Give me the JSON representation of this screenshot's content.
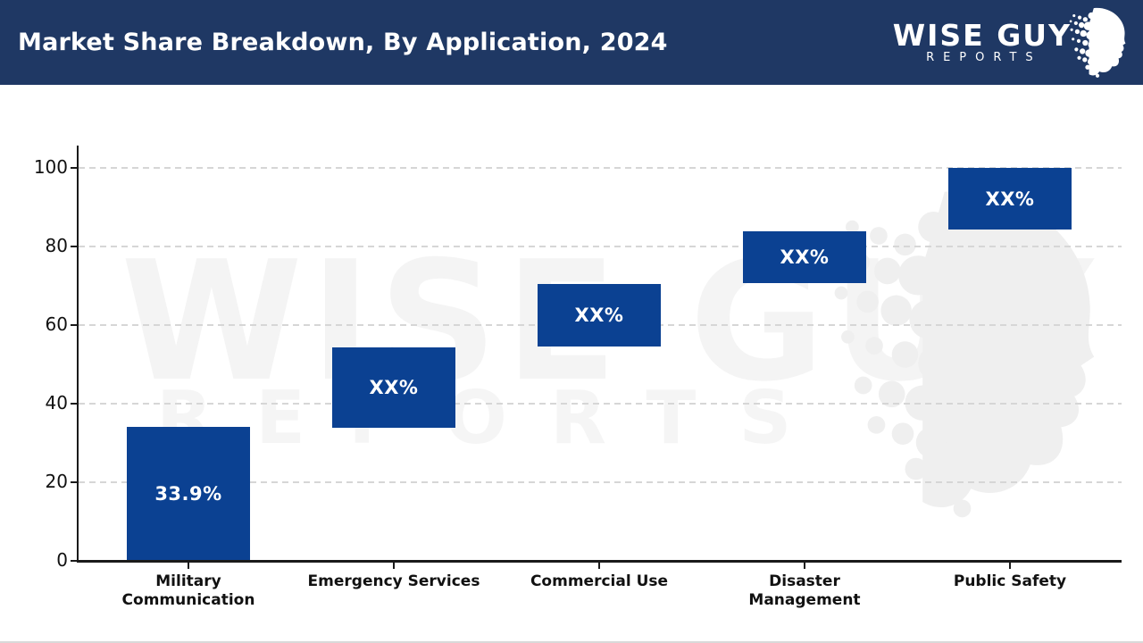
{
  "header": {
    "title": "Market Share Breakdown, By Application, 2024",
    "logo": {
      "line1": "WISE GUY",
      "line2": "REPORTS"
    }
  },
  "watermark": {
    "line1": "WISE GUY",
    "line2": "REPORTS"
  },
  "colors": {
    "header_bg": "#1f3864",
    "bar": "#0b4192",
    "bar_label": "#ffffff",
    "grid": "#d6d6d6",
    "axis": "#1a1a1a",
    "footer_line": "#d9d9d9"
  },
  "chart_data": {
    "type": "bar",
    "subtype": "floating-segment-waterfall",
    "title": "Market Share Breakdown, By Application, 2024",
    "xlabel": "",
    "ylabel": "",
    "categories": [
      "Military Communication",
      "Emergency Services",
      "Commercial Use",
      "Disaster Management",
      "Public Safety"
    ],
    "segments": [
      {
        "category": "Military Communication",
        "lines": [
          "Military",
          "Communication"
        ],
        "start": 0,
        "end": 33.9,
        "label": "33.9%"
      },
      {
        "category": "Emergency Services",
        "lines": [
          "Emergency Services"
        ],
        "start": 33.8,
        "end": 54.1,
        "label": "XX%"
      },
      {
        "category": "Commercial Use",
        "lines": [
          "Commercial Use"
        ],
        "start": 54.4,
        "end": 70.3,
        "label": "XX%"
      },
      {
        "category": "Disaster Management",
        "lines": [
          "Disaster",
          "Management"
        ],
        "start": 70.6,
        "end": 83.8,
        "label": "XX%"
      },
      {
        "category": "Public Safety",
        "lines": [
          "Public Safety"
        ],
        "start": 84.1,
        "end": 99.9,
        "label": "XX%"
      }
    ],
    "yticks": [
      0,
      20,
      40,
      60,
      80,
      100
    ],
    "ylim": [
      0,
      105
    ],
    "grid": "horizontal-dashed",
    "legend": "none",
    "bar_color": "#0b4192",
    "bar_label_color": "#ffffff"
  }
}
